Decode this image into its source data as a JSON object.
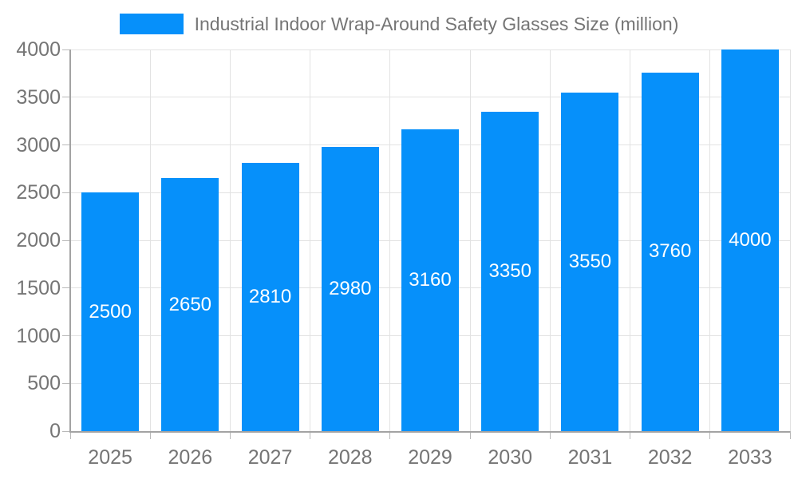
{
  "chart_data": {
    "type": "bar",
    "title": "Industrial Indoor Wrap-Around Safety Glasses Size (million)",
    "categories": [
      "2025",
      "2026",
      "2027",
      "2028",
      "2029",
      "2030",
      "2031",
      "2032",
      "2033"
    ],
    "values": [
      2500,
      2650,
      2810,
      2980,
      3160,
      3350,
      3550,
      3760,
      4000
    ],
    "xlabel": "",
    "ylabel": "",
    "ylim": [
      0,
      4000
    ],
    "ytick_step": 500,
    "ytick_labels": [
      "0",
      "500",
      "1000",
      "1500",
      "2000",
      "2500",
      "3000",
      "3500",
      "4000"
    ],
    "grid": true,
    "legend_position": "top",
    "bar_color": "#0690fa",
    "bar_label_color": "#ffffff",
    "axis_text_color": "#757575"
  }
}
